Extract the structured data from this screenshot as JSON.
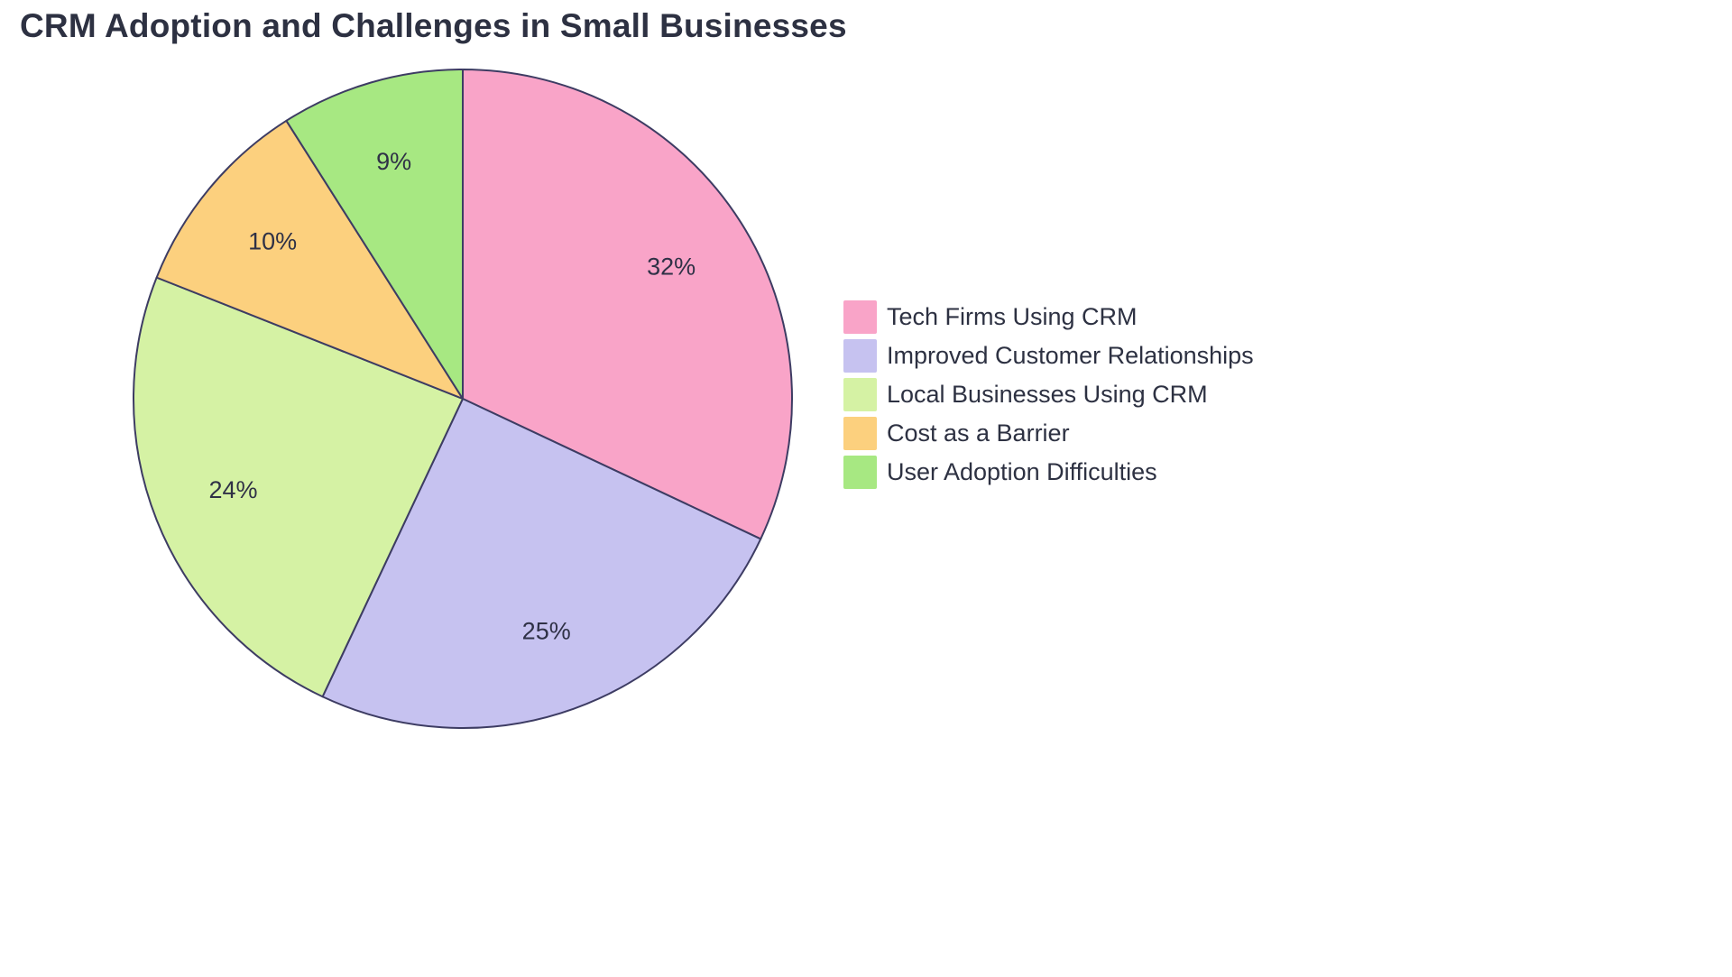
{
  "title": "CRM Adoption and Challenges in Small Businesses",
  "chart_data": {
    "type": "pie",
    "title": "CRM Adoption and Challenges in Small Businesses",
    "labels": [
      "Tech Firms Using CRM",
      "Improved Customer Relationships",
      "Local Businesses Using CRM",
      "Cost as a Barrier",
      "User Adoption Difficulties"
    ],
    "values": [
      32,
      25,
      24,
      10,
      9
    ],
    "value_labels": [
      "32%",
      "25%",
      "24%",
      "10%",
      "9%"
    ],
    "unit": "%",
    "colors": [
      "#F9A4C8",
      "#C6C2F0",
      "#D5F2A4",
      "#FCD07E",
      "#A7E882"
    ],
    "stroke_color": "#3d3c63",
    "start_angle_deg": -90,
    "direction": "clockwise",
    "legend_position": "right",
    "label_color": "#2f3146",
    "title_color": "#2d3142",
    "background": "#FFFFFF"
  }
}
